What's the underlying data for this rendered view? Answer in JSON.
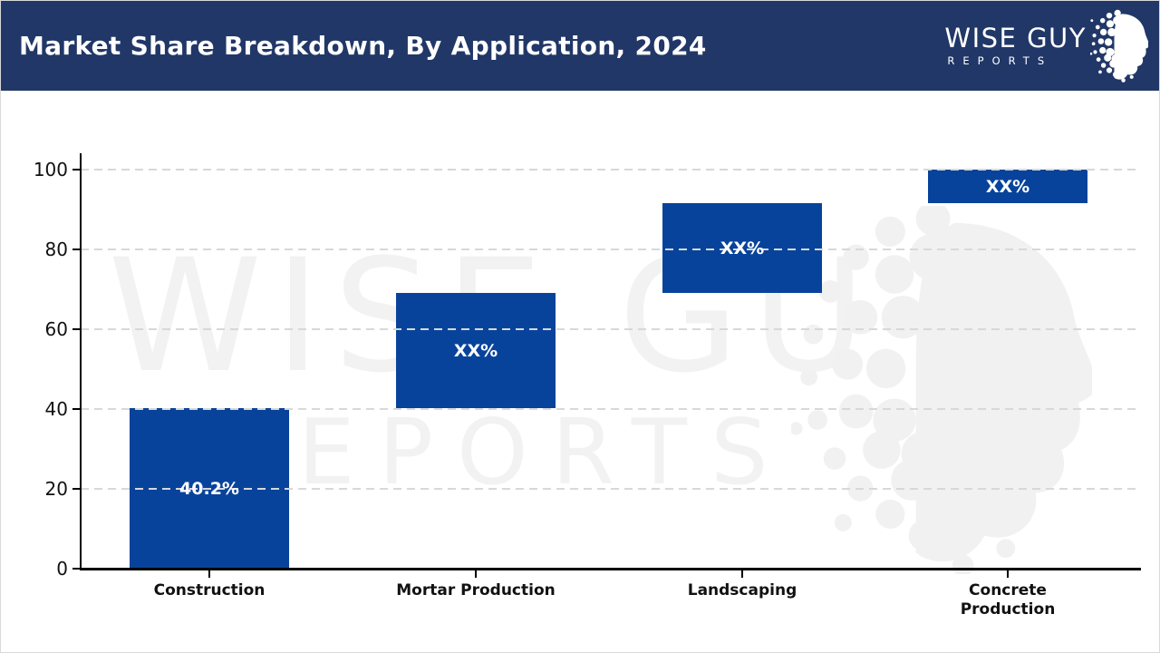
{
  "header": {
    "title": "Market Share Breakdown, By Application, 2024",
    "logo": {
      "line1": "WISE GUY",
      "line2": "REPORTS"
    }
  },
  "watermark": {
    "line1": "WISE GU Y",
    "line2": "REPORTS"
  },
  "colors": {
    "header_navy": "#213767",
    "bar_blue": "#08439B",
    "grid_gray": "#D8D8D8",
    "axis_black": "#000000",
    "label_white": "#FFFFFF",
    "watermark_gray": "#F2F2F2",
    "border_gray": "#D9D9D9"
  },
  "chart_data": {
    "type": "waterfall",
    "title": "Market Share Breakdown, By Application, 2024",
    "unit": "%",
    "ylim": [
      0,
      100
    ],
    "yticks": [
      0,
      20,
      40,
      60,
      80,
      100
    ],
    "grid": "horizontal-dashed",
    "legend": "none",
    "bar_color": "#08439B",
    "categories": [
      {
        "name": "Construction",
        "lines": [
          "Construction"
        ],
        "start": 0,
        "end": 40.2,
        "value": 40.2,
        "label": "40.2%"
      },
      {
        "name": "Mortar Production",
        "lines": [
          "Mortar Production"
        ],
        "start": 40.2,
        "end": 69,
        "value": 28.8,
        "label": "XX%"
      },
      {
        "name": "Landscaping",
        "lines": [
          "Landscaping"
        ],
        "start": 69,
        "end": 91.5,
        "value": 22.5,
        "label": "XX%"
      },
      {
        "name": "Concrete Production",
        "lines": [
          "Concrete",
          "Production"
        ],
        "start": 91.5,
        "end": 100,
        "value": 8.5,
        "label": "XX%"
      }
    ]
  }
}
